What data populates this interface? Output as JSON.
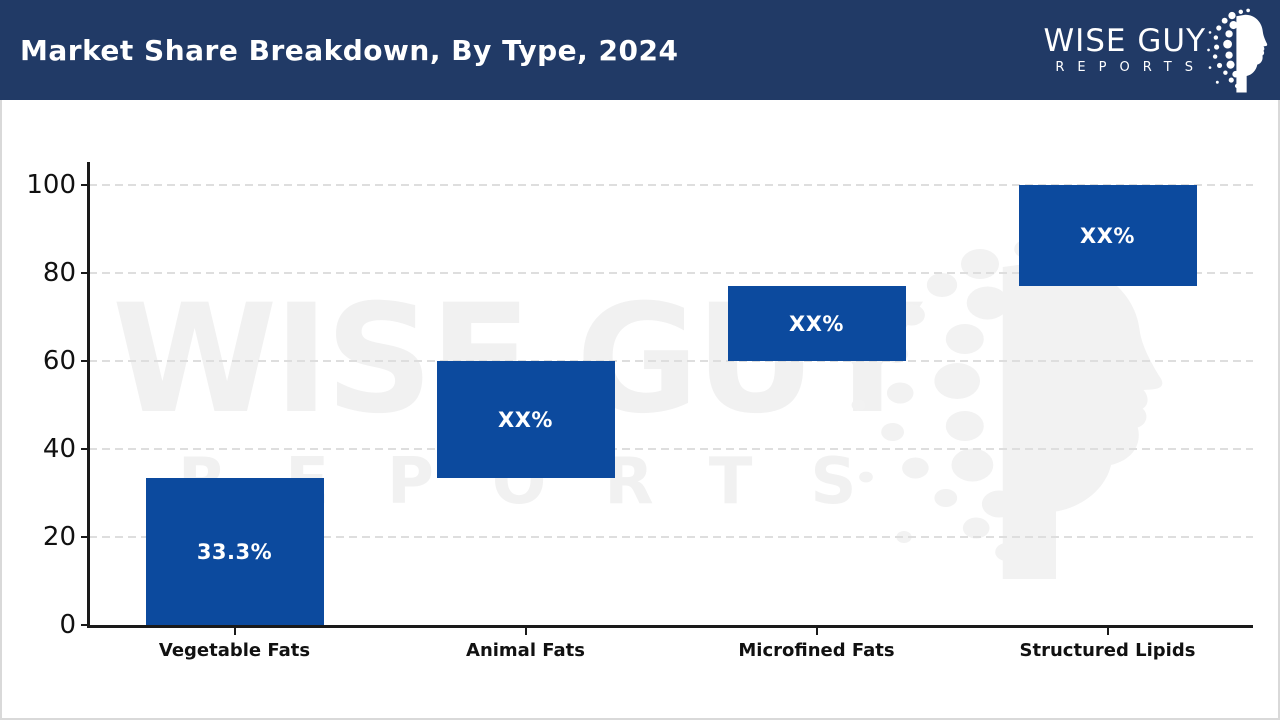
{
  "header": {
    "title": "Market Share Breakdown, By Type, 2024",
    "bg_color": "#213a66",
    "logo": {
      "wordmark": "WISE GUY",
      "subtitle": "REPORTS"
    }
  },
  "watermark": {
    "wordmark": "WISE GUY",
    "subtitle": "REPORTS"
  },
  "chart_data": {
    "type": "bar",
    "subtype": "floating-waterfall",
    "title": "Market Share Breakdown, By Type, 2024",
    "categories": [
      "Vegetable Fats",
      "Animal Fats",
      "Microfined Fats",
      "Structured Lipids"
    ],
    "series": [
      {
        "name": "Market share (%)",
        "segments": [
          {
            "category": "Vegetable Fats",
            "start": 0,
            "end": 33.3,
            "label": "33.3%"
          },
          {
            "category": "Animal Fats",
            "start": 33.3,
            "end": 60,
            "label": "XX%"
          },
          {
            "category": "Microfined Fats",
            "start": 60,
            "end": 77,
            "label": "XX%"
          },
          {
            "category": "Structured Lipids",
            "start": 77,
            "end": 100,
            "label": "XX%"
          }
        ]
      }
    ],
    "xlabel": "",
    "ylabel": "",
    "ylim": [
      0,
      105
    ],
    "yticks": [
      0,
      20,
      40,
      60,
      80,
      100
    ],
    "grid": {
      "horizontal": true,
      "style": "dashed",
      "color": "#dedede"
    },
    "legend": "none",
    "bar_color": "#0c4a9e",
    "bar_label_color": "#ffffff",
    "axis_color": "#1a1a1a",
    "tick_label_color": "#111111"
  }
}
